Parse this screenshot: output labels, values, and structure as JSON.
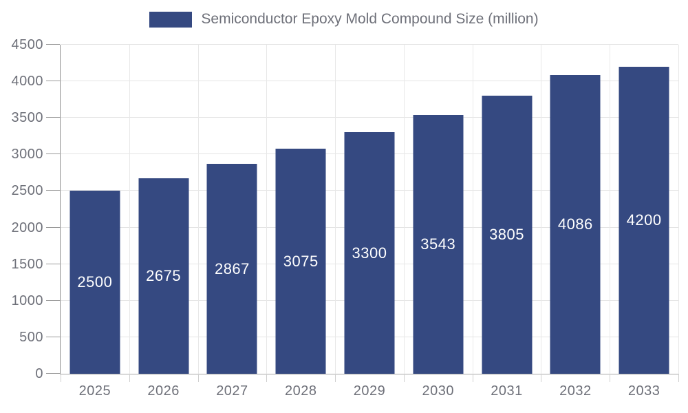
{
  "legend": {
    "items": [
      {
        "label": "Semiconductor Epoxy Mold Compound Size (million)",
        "color": "#354981"
      }
    ]
  },
  "chart_data": {
    "type": "bar",
    "title": "Semiconductor Epoxy Mold Compound Size (million)",
    "categories": [
      "2025",
      "2026",
      "2027",
      "2028",
      "2029",
      "2030",
      "2031",
      "2032",
      "2033"
    ],
    "series": [
      {
        "name": "Semiconductor Epoxy Mold Compound Size (million)",
        "values": [
          2500,
          2675,
          2867,
          3075,
          3300,
          3543,
          3805,
          4086,
          4200
        ],
        "color": "#354981"
      }
    ],
    "xlabel": "",
    "ylabel": "",
    "ylim": [
      0,
      4500
    ],
    "yticks": [
      0,
      500,
      1000,
      1500,
      2000,
      2500,
      3000,
      3500,
      4000,
      4500
    ],
    "grid": true,
    "legend_position": "top",
    "bar_label_color": "#ffffff",
    "axis_label_color": "#6E7079",
    "gridline_color": "#e4e4e4",
    "axis_line_color": "#999999"
  }
}
